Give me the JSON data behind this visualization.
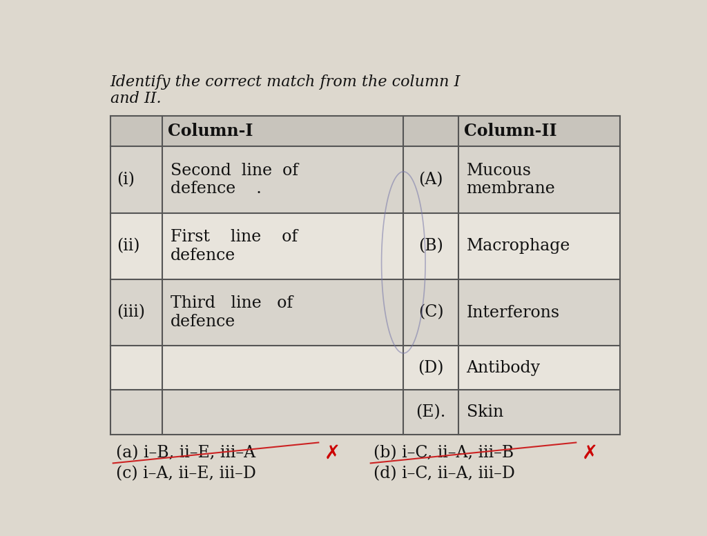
{
  "title_line1": "Identify the correct match from the column I",
  "title_line2": "and II.",
  "header_col1": "Column-I",
  "header_col2": "Column-II",
  "row_labels": [
    "(i)",
    "(ii)",
    "(iii)",
    "",
    ""
  ],
  "col1_texts": [
    "Second  line  of\ndefence    .",
    "First    line    of\ndefence",
    "Third   line   of\ndefence",
    "",
    ""
  ],
  "col2_labels": [
    "(A)",
    "(B)",
    "(C)",
    "(D)",
    "(E)."
  ],
  "col2_texts": [
    "Mucous\nmembrane",
    "Macrophage",
    "Interferons",
    "Antibody",
    "Skin"
  ],
  "options": [
    {
      "label": "(a)",
      "text": "i–B, ii–E, iii–A"
    },
    {
      "label": "(b)",
      "text": "i–C, ii–A, iii–B"
    },
    {
      "label": "(c)",
      "text": "i–A, ii–E, iii–D"
    },
    {
      "label": "(d)",
      "text": "i–C, ii–A, iii–D"
    }
  ],
  "bg_color": "#ddd8ce",
  "table_bg": "#e8e4dc",
  "header_bg": "#c8c4bc",
  "alt_row_bg": "#d8d4cc",
  "border_color": "#555555",
  "text_color": "#111111",
  "font_size": 17
}
